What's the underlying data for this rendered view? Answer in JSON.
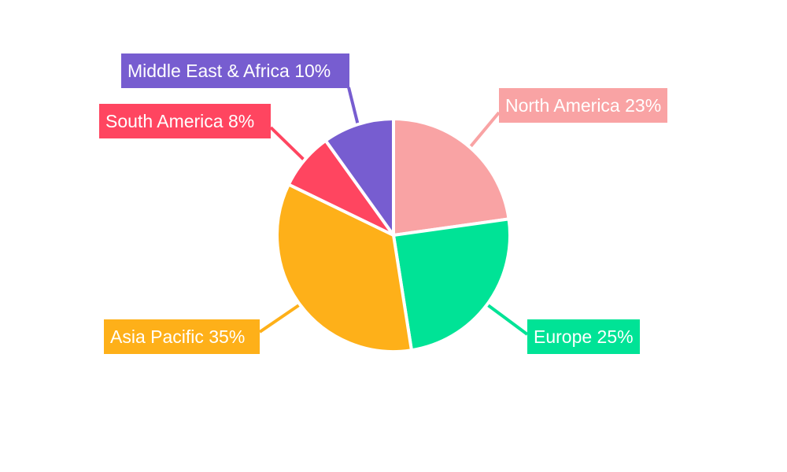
{
  "chart_data": {
    "type": "pie",
    "title": "",
    "legend": "none",
    "slices": [
      {
        "label": "North America",
        "value": 23,
        "text": "North America 23%",
        "color": "#F9A3A4"
      },
      {
        "label": "Europe",
        "value": 25,
        "text": "Europe 25%",
        "color": "#00E396"
      },
      {
        "label": "Asia Pacific",
        "value": 35,
        "text": "Asia Pacific 35%",
        "color": "#FEB019"
      },
      {
        "label": "South America",
        "value": 8,
        "text": "South America 8%",
        "color": "#FF4560"
      },
      {
        "label": "Middle East & Africa",
        "value": 10,
        "text": "Middle East & Africa 10%",
        "color": "#775DD0"
      }
    ]
  }
}
